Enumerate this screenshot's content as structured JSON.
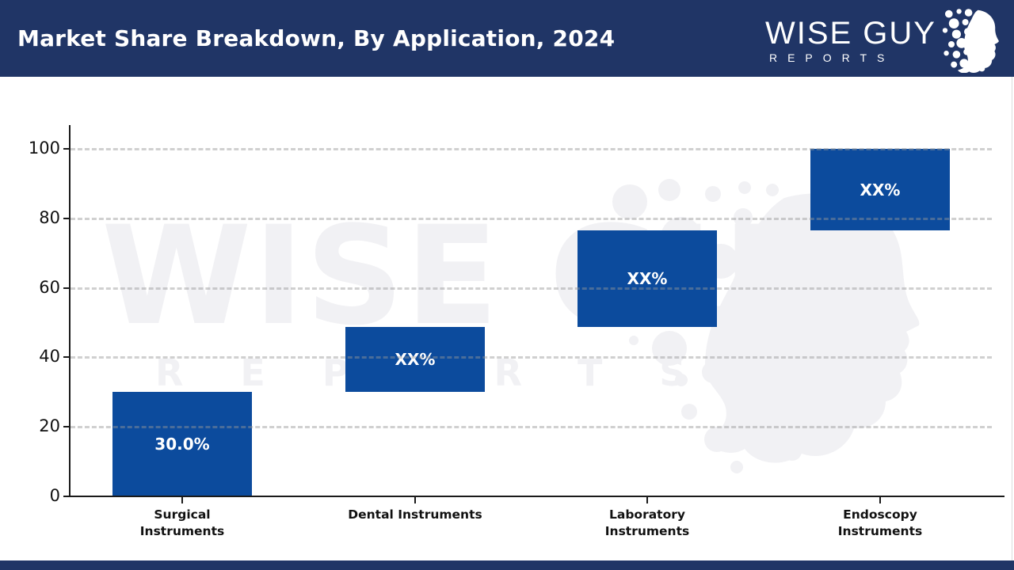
{
  "header": {
    "title": "Market Share Breakdown, By Application, 2024"
  },
  "logo": {
    "line1": "WISE GUY",
    "line2": "REPORTS",
    "head_icon": "dotted-head-profile"
  },
  "watermark": {
    "line1": "WISE GUY",
    "line2": "REPORTS",
    "head_icon": "dotted-head-profile"
  },
  "colors": {
    "header_bg": "#203566",
    "footer_bg": "#203566",
    "bar": "#0c4b9d",
    "bar_label": "#ffffff",
    "watermark": "#f1f1f4",
    "axis": "#1a1a1a",
    "grid": "#c8c8c8",
    "title_text": "#ffffff"
  },
  "chart_data": {
    "type": "bar",
    "subtype": "floating-waterfall",
    "title": "Market Share Breakdown, By Application, 2024",
    "xlabel": "",
    "ylabel": "",
    "ylim": [
      0,
      107
    ],
    "y_ticks": [
      0,
      20,
      40,
      60,
      80,
      100
    ],
    "grid": "horizontal-dashed",
    "legend": "none",
    "categories": [
      "Surgical Instruments",
      "Dental Instruments",
      "Laboratory Instruments",
      "Endoscopy Instruments"
    ],
    "category_lines": [
      [
        "Surgical",
        "Instruments"
      ],
      [
        "Dental Instruments"
      ],
      [
        "Laboratory",
        "Instruments"
      ],
      [
        "Endoscopy",
        "Instruments"
      ]
    ],
    "segments": [
      {
        "category": "Surgical Instruments",
        "start": 0,
        "end": 30,
        "value": 30.0,
        "label": "30.0%"
      },
      {
        "category": "Dental Instruments",
        "start": 30,
        "end": 48.8,
        "value": 18.8,
        "label": "XX%"
      },
      {
        "category": "Laboratory Instruments",
        "start": 48.8,
        "end": 76.5,
        "value": 27.7,
        "label": "XX%"
      },
      {
        "category": "Endoscopy Instruments",
        "start": 76.5,
        "end": 100,
        "value": 23.5,
        "label": "XX%"
      }
    ]
  }
}
